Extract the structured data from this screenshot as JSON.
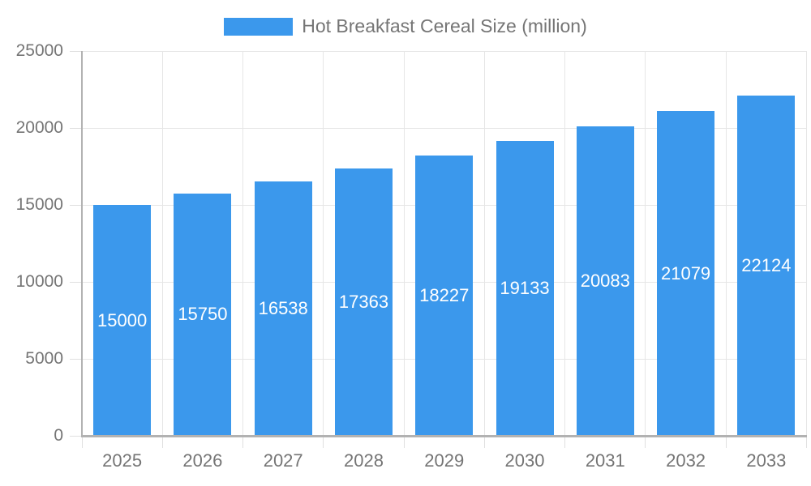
{
  "legend": {
    "label": "Hot Breakfast Cereal Size (million)"
  },
  "colors": {
    "bar": "#3B98EC",
    "grid": "#E6E6E6",
    "axis": "#B2B2B2",
    "tick": "#E0E0E0",
    "text": "#757575",
    "bar_label": "#FFFFFF",
    "background": "#FFFFFF"
  },
  "chart_data": {
    "type": "bar",
    "title": "",
    "xlabel": "",
    "ylabel": "",
    "categories": [
      "2025",
      "2026",
      "2027",
      "2028",
      "2029",
      "2030",
      "2031",
      "2032",
      "2033"
    ],
    "series": [
      {
        "name": "Hot Breakfast Cereal Size (million)",
        "values": [
          15000,
          15750,
          16538,
          17363,
          18227,
          19133,
          20083,
          21079,
          22124
        ]
      }
    ],
    "ylim": [
      0,
      25000
    ],
    "yticks": [
      0,
      5000,
      10000,
      15000,
      20000,
      25000
    ],
    "grid": true,
    "legend_position": "top-center",
    "bar_value_labels": "inside-center"
  }
}
